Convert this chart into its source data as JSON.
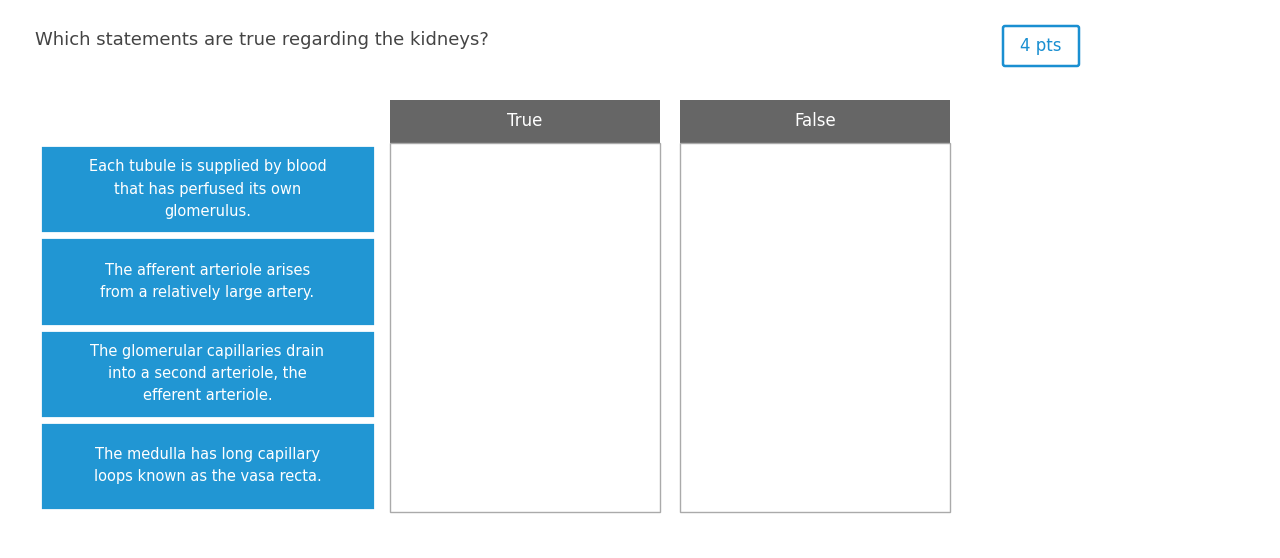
{
  "title": "Which statements are true regarding the kidneys?",
  "pts_label": "4 pts",
  "background_color": "#ffffff",
  "title_fontsize": 13,
  "title_color": "#444444",
  "pts_color": "#1a8fd1",
  "pts_fontsize": 12,
  "col_header_bg": "#666666",
  "col_header_text": "#ffffff",
  "col_header_fontsize": 12,
  "col_headers": [
    "True",
    "False"
  ],
  "card_bg": "#2196d3",
  "card_text_color": "#ffffff",
  "card_fontsize": 10.5,
  "card_border_color": "#ffffff",
  "statements": [
    "Each tubule is supplied by blood\nthat has perfused its own\nglomerulus.",
    "The afferent arteriole arises\nfrom a relatively large artery.",
    "The glomerular capillaries drain\ninto a second arteriole, the\nefferent arteriole.",
    "The medulla has long capillary\nloops known as the vasa recta."
  ],
  "drop_zone_border": "#aaaaaa",
  "drop_zone_bg": "#ffffff",
  "fig_width": 12.8,
  "fig_height": 5.58,
  "dpi": 100
}
